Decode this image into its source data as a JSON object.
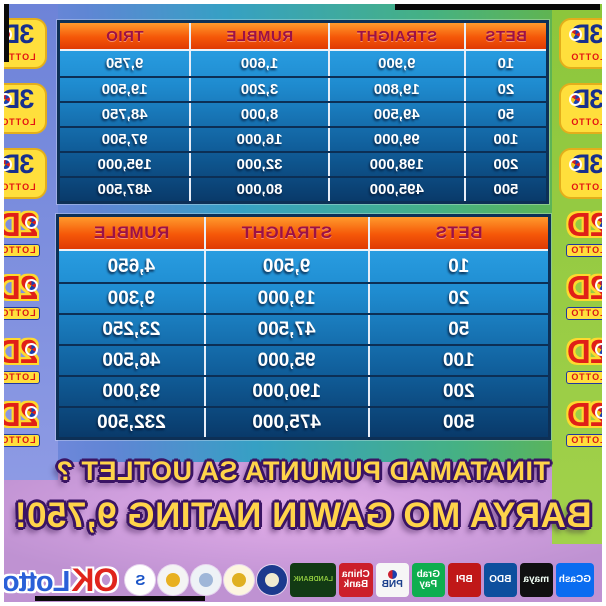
{
  "headline": {
    "line1": "TINATAMAD PUMUNTA SA UOTLET ?",
    "line2": "BARYA MO GAWIN NATING 9,750!"
  },
  "chart_data": [
    {
      "type": "table",
      "id": "lotto3d",
      "columns": [
        "BETS",
        "STRAIGHT",
        "RUMBLE",
        "TRIO"
      ],
      "rows": [
        [
          "10",
          "9,900",
          "1,600",
          "9,750"
        ],
        [
          "20",
          "19,800",
          "3,200",
          "19,500"
        ],
        [
          "50",
          "49,500",
          "8,000",
          "48,750"
        ],
        [
          "100",
          "99,000",
          "16,000",
          "97,500"
        ],
        [
          "200",
          "198,000",
          "32,000",
          "195,000"
        ],
        [
          "500",
          "495,000",
          "80,000",
          "487,500"
        ]
      ]
    },
    {
      "type": "table",
      "id": "lotto2d",
      "columns": [
        "BETS",
        "STRAIGHT",
        "RUMBLE"
      ],
      "rows": [
        [
          "10",
          "9,500",
          "4,650"
        ],
        [
          "20",
          "19,000",
          "9,300"
        ],
        [
          "50",
          "47,500",
          "23,250"
        ],
        [
          "100",
          "95,000",
          "46,500"
        ],
        [
          "200",
          "190,000",
          "93,000"
        ],
        [
          "500",
          "475,000",
          "232,500"
        ]
      ]
    }
  ],
  "side_badges": {
    "three_d": {
      "big": "3D",
      "small": "LOTTO"
    },
    "two_d": {
      "big": "2D",
      "small": "LOTTO"
    }
  },
  "footer": {
    "logos": [
      {
        "name": "gcash-logo",
        "type": "rect",
        "label": "GCash",
        "bg": "#0a6cf0",
        "fg": "#ffffff"
      },
      {
        "name": "maya-logo",
        "type": "rect",
        "label": "maya",
        "bg": "#101010",
        "fg": "#f2fff4"
      },
      {
        "name": "bdo-logo",
        "type": "rect",
        "label": "BDO",
        "bg": "#0d4f9e",
        "fg": "#ffffff"
      },
      {
        "name": "bpi-logo",
        "type": "rect",
        "label": "BPI",
        "bg": "#c01818",
        "fg": "#ffffff"
      },
      {
        "name": "grabpay-logo",
        "type": "rect",
        "label": "Grab",
        "label2": "Pay",
        "bg": "#0eae4f",
        "fg": "#ffffff"
      },
      {
        "name": "pnb-logo",
        "type": "rect",
        "label": "PNB",
        "bg": "#f6f6f6",
        "fg": "#1a3f8c",
        "dot": true
      },
      {
        "name": "chinabank-logo",
        "type": "rect",
        "label": "China",
        "label2": "Bank",
        "bg": "#cc1f2a",
        "fg": "#ffffff"
      },
      {
        "name": "landbank-logo",
        "type": "rect",
        "label": "LANDBANK",
        "bg": "#123a14",
        "fg": "#8cc63e",
        "tiny": true
      },
      {
        "name": "navy-seal-logo",
        "type": "circle",
        "label": "",
        "bg": "#1c3a8e",
        "fg": "#f0ead0"
      },
      {
        "name": "gold-seal-logo",
        "type": "circle",
        "label": "",
        "bg": "#fdf6e0",
        "fg": "#e0b020"
      },
      {
        "name": "trophy-logo",
        "type": "circle",
        "label": "",
        "bg": "#eef2f6",
        "fg": "#9fb6d8"
      },
      {
        "name": "flag-seal-logo",
        "type": "circle",
        "label": "",
        "bg": "#f4f4f4",
        "fg": "#e8b020"
      },
      {
        "name": "s-seal-logo",
        "type": "circle",
        "label": "S",
        "bg": "#ffffff",
        "fg": "#1a54c8"
      },
      {
        "name": "ok-lotto-logo",
        "type": "oklotto",
        "label": "OK",
        "label2": "Lotto"
      },
      {
        "name": "lotto-balls",
        "type": "balls",
        "bg": "#3fae4a",
        "fg": "#22a8c8"
      }
    ]
  },
  "colors": {
    "header_gradient_top": "#ff9a2c",
    "header_gradient_bottom": "#df3a04",
    "header_text": "#9c1146",
    "table_blue_top": "#2ea6ea",
    "table_blue_bottom": "#093a6a",
    "cell_text": "#ffffff",
    "headline_gold": "#ffd44a",
    "headline_outline": "#3a1464",
    "bg_green": "#8cc63c",
    "bg_periwinkle": "#7b88e0",
    "bg_lavender": "#c698d8",
    "badge_yellow": "#ffdf3c",
    "badge_3d_text": "#172f8e",
    "badge_2d_text": "#e02018"
  }
}
